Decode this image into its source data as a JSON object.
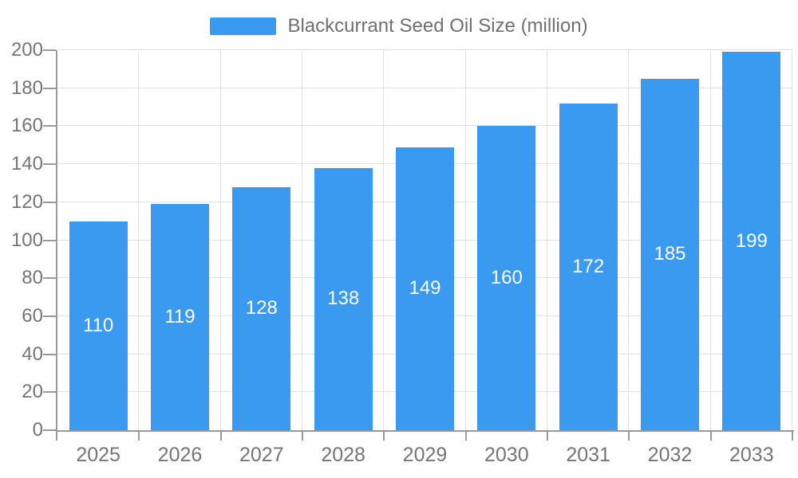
{
  "chart_data": {
    "type": "bar",
    "legend": "Blackcurrant Seed Oil Size (million)",
    "categories": [
      "2025",
      "2026",
      "2027",
      "2028",
      "2029",
      "2030",
      "2031",
      "2032",
      "2033"
    ],
    "values": [
      110,
      119,
      128,
      138,
      149,
      160,
      172,
      185,
      199
    ],
    "ylim": [
      0,
      200
    ],
    "ytick_step": 20,
    "grid": true,
    "legend_position": "top",
    "value_labels": "inside-center",
    "colors": {
      "bar": "#3a9af0",
      "value_label": "#ffffff",
      "grid": "#e0e0e0",
      "axis": "#999999",
      "tick": "#999999",
      "axis_label": "#757575",
      "legend_text": "#707070",
      "background": "#ffffff"
    }
  }
}
